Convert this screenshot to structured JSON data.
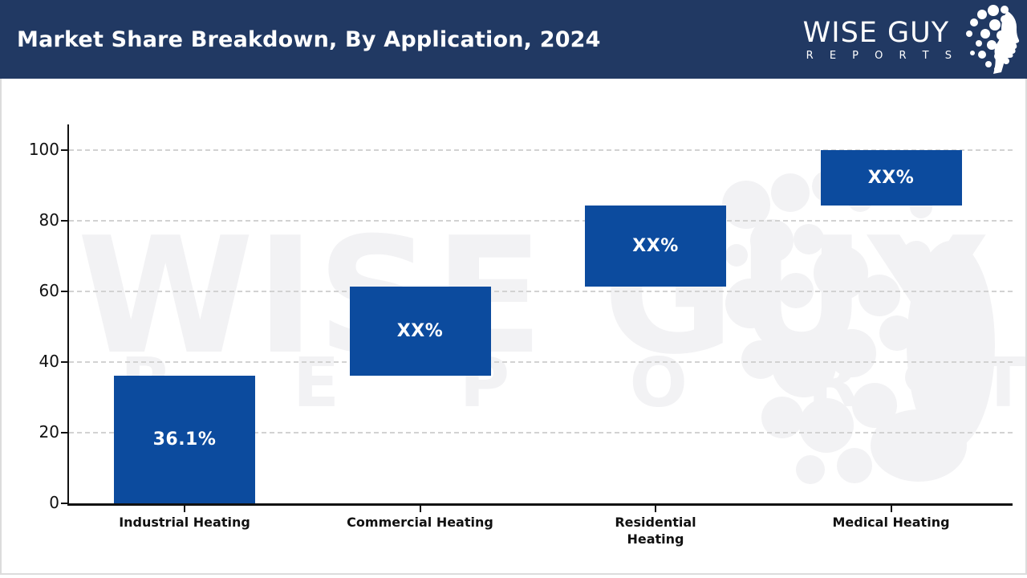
{
  "header": {
    "title": "Market Share Breakdown, By Application, 2024",
    "bg_color": "#213963",
    "logo": {
      "line1": "WISE GUY",
      "line2": "R E P O R T S"
    }
  },
  "watermark": {
    "line1": "WISE GUY",
    "line2": "R E P O R T S"
  },
  "chart_data": {
    "type": "bar",
    "subtype": "floating-waterfall",
    "title": "Market Share Breakdown, By Application, 2024",
    "categories": [
      "Industrial Heating",
      "Commercial Heating",
      "Residential\nHeating",
      "Medical Heating"
    ],
    "segments": [
      {
        "category": "Industrial Heating",
        "start": 0,
        "end": 36.1,
        "label": "36.1%"
      },
      {
        "category": "Commercial Heating",
        "start": 36.1,
        "end": 61.4,
        "label": "XX%"
      },
      {
        "category": "Residential Heating",
        "start": 61.4,
        "end": 84.3,
        "label": "XX%"
      },
      {
        "category": "Medical Heating",
        "start": 84.3,
        "end": 100,
        "label": "XX%"
      }
    ],
    "values": [
      36.1,
      25.3,
      22.9,
      15.7
    ],
    "value_labels": [
      "36.1%",
      "XX%",
      "XX%",
      "XX%"
    ],
    "ylabel": "",
    "xlabel": "",
    "ylim": [
      0,
      100
    ],
    "yticks": [
      0,
      20,
      40,
      60,
      80,
      100
    ],
    "grid": "horizontal-dashed",
    "legend": "none",
    "bar_color": "#0C4B9E",
    "label_color": "#ffffff"
  }
}
